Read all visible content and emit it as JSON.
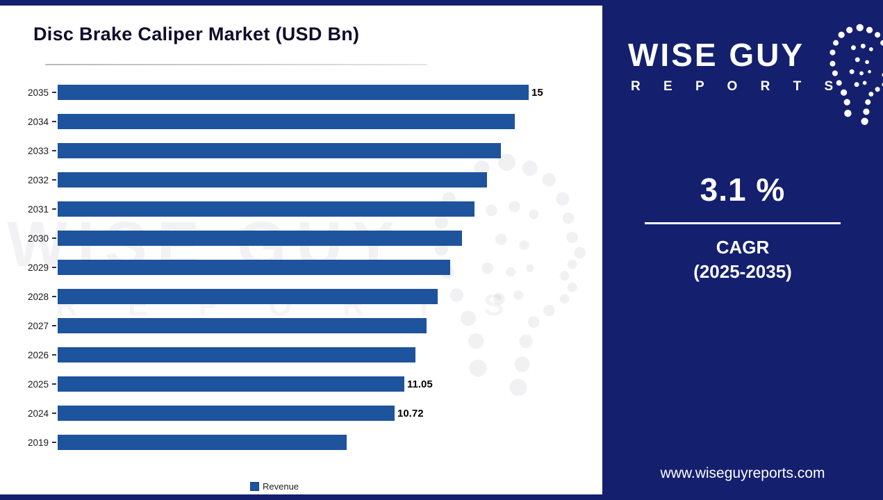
{
  "header": {
    "title": "Disc Brake Caliper Market (USD Bn)"
  },
  "chart_data": {
    "type": "bar",
    "orientation": "horizontal",
    "title": "Disc Brake Caliper Market (USD Bn)",
    "categories": [
      "2035",
      "2034",
      "2033",
      "2032",
      "2031",
      "2030",
      "2029",
      "2028",
      "2027",
      "2026",
      "2025",
      "2024",
      "2019"
    ],
    "values": [
      15,
      14.55,
      14.11,
      13.68,
      13.27,
      12.87,
      12.49,
      12.11,
      11.75,
      11.39,
      11.05,
      10.72,
      9.2
    ],
    "data_labels": [
      "15",
      null,
      null,
      null,
      null,
      null,
      null,
      null,
      null,
      null,
      "11.05",
      "10.72",
      null
    ],
    "series_name": "Revenue",
    "xlim": [
      0,
      15
    ],
    "xlabel": "",
    "ylabel": "",
    "grid": false,
    "legend_position": "bottom",
    "bar_color": "#1e539e"
  },
  "side_panel": {
    "logo_line1": "WISE GUY",
    "logo_line2": "R E P O R T S",
    "cagr_value": "3.1 %",
    "cagr_label": "CAGR",
    "cagr_range": "(2025-2035)",
    "website": "www.wiseguyreports.com",
    "background_color": "#141f6e"
  },
  "watermark": {
    "line1": "WISE GUY",
    "line2": "R E P O R T S"
  }
}
